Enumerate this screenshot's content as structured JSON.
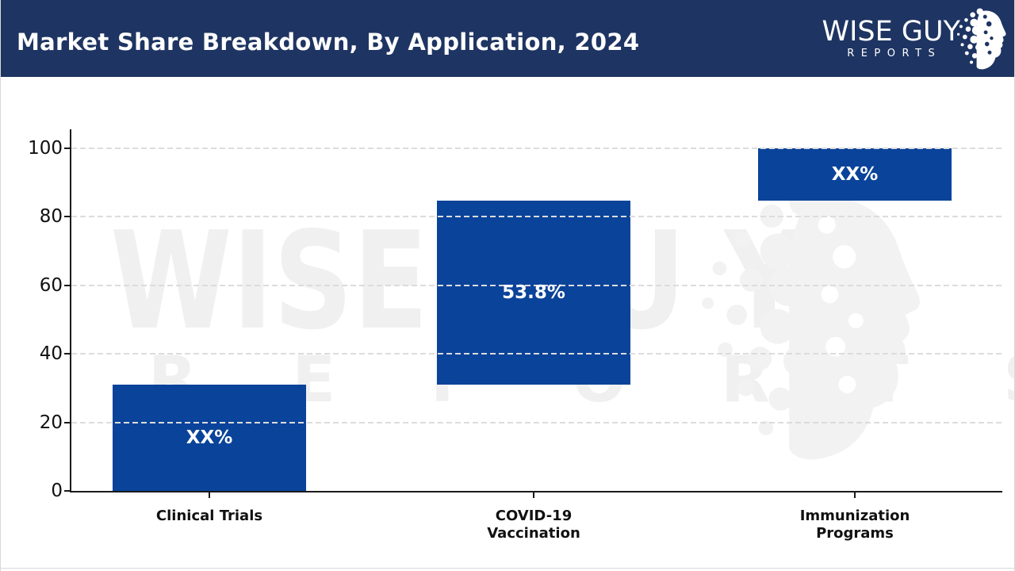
{
  "header": {
    "title": "Market Share Breakdown, By Application, 2024",
    "logo": {
      "line1": "WISE GUY",
      "line2": "REPORTS",
      "icon": "head-profile-dots-icon"
    }
  },
  "watermark": {
    "line1": "WISE G U Y",
    "line2": "R E P O R T S",
    "icon": "head-profile-dots-icon"
  },
  "chart_data": {
    "type": "bar",
    "subtype": "floating-waterfall",
    "title": "Market Share Breakdown, By Application, 2024",
    "categories": [
      [
        "Clinical Trials"
      ],
      [
        "COVID-19",
        "Vaccination"
      ],
      [
        "Immunization",
        "Programs"
      ]
    ],
    "bars": [
      {
        "category": "Clinical Trials",
        "label": "XX%",
        "start": 0,
        "end": 31
      },
      {
        "category": "COVID-19 Vaccination",
        "label": "53.8%",
        "start": 31,
        "end": 84.8
      },
      {
        "category": "Immunization Programs",
        "label": "XX%",
        "start": 84.8,
        "end": 100
      }
    ],
    "ylim": [
      0,
      100
    ],
    "yticks": [
      0,
      20,
      40,
      60,
      80,
      100
    ],
    "xlabel": "",
    "ylabel": "",
    "grid": "horizontal-dashed",
    "legend": "none",
    "bar_color": "#0a439a",
    "colors": {
      "header_bg": "#1e3462",
      "grid": "#dcdcdc",
      "axis": "#1a1a1a",
      "bar_label_text": "#ffffff",
      "watermark": "#f0f0f0"
    }
  }
}
